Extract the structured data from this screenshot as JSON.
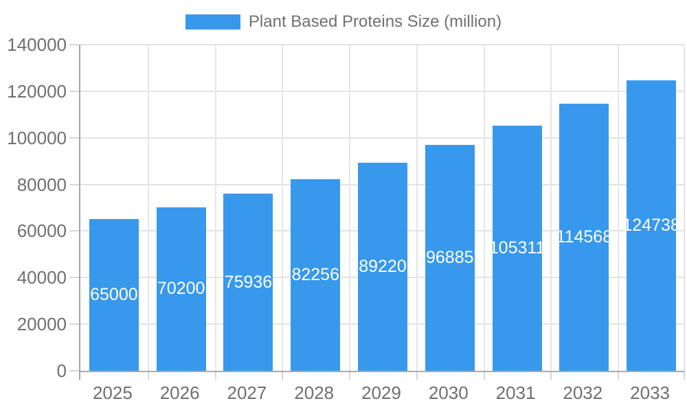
{
  "accent_color": "#3898EC",
  "legend": {
    "label": "Plant Based Proteins Size (million)"
  },
  "chart_data": {
    "type": "bar",
    "title": "Plant Based Proteins Size (million)",
    "legend_position": "top",
    "categories": [
      "2025",
      "2026",
      "2027",
      "2028",
      "2029",
      "2030",
      "2031",
      "2032",
      "2033"
    ],
    "values": [
      65000,
      70200,
      75936,
      82256,
      89220,
      96885,
      105311,
      114568,
      124738
    ],
    "value_labels": [
      "65000",
      "70200",
      "75936",
      "82256",
      "89220",
      "96885",
      "105311",
      "114568",
      "124738"
    ],
    "xlabel": "",
    "ylabel": "",
    "ylim": [
      0,
      140000
    ],
    "ytick_step": 20000,
    "ytick_labels": [
      "0",
      "20000",
      "40000",
      "60000",
      "80000",
      "100000",
      "120000",
      "140000"
    ],
    "grid": true,
    "bar_color": "#3898EC",
    "value_label_color": "#ffffff",
    "tick_label_color": "#6f6f6f",
    "gridline_color": "#e3e3e3"
  }
}
